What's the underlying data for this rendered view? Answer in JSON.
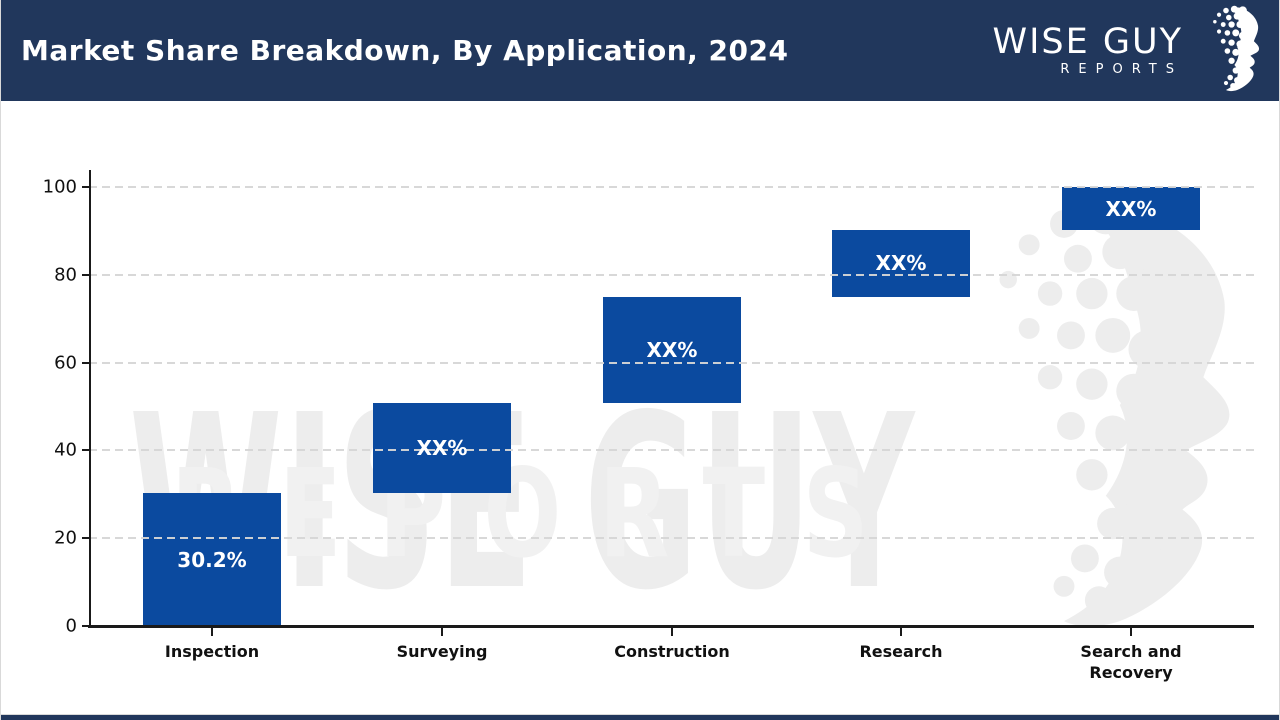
{
  "header": {
    "title": "Market Share Breakdown, By Application, 2024",
    "logo": {
      "line1": "WISE GUY",
      "line2": "REPORTS"
    }
  },
  "watermark": {
    "line1": "WISE GUY",
    "line2": "REPORTS"
  },
  "colors": {
    "header_bg": "#21375c",
    "bar": "#0b4a9f",
    "grid": "#d9d9d9",
    "axis": "#1a1a1a",
    "bar_label_text": "#ffffff"
  },
  "chart_data": {
    "type": "bar",
    "subtype": "waterfall",
    "title": "Market Share Breakdown, By Application, 2024",
    "categories": [
      "Inspection",
      "Surveying",
      "Construction",
      "Research",
      "Search and Recovery"
    ],
    "segments": [
      {
        "category": "Inspection",
        "start": 0,
        "end": 30.2,
        "label": "30.2%"
      },
      {
        "category": "Surveying",
        "start": 30.2,
        "end": 50.7,
        "label": "XX%"
      },
      {
        "category": "Construction",
        "start": 50.7,
        "end": 75.0,
        "label": "XX%"
      },
      {
        "category": "Research",
        "start": 75.0,
        "end": 90.2,
        "label": "XX%"
      },
      {
        "category": "Search and Recovery",
        "start": 90.2,
        "end": 100.0,
        "label": "XX%"
      }
    ],
    "ylim": [
      0,
      100
    ],
    "yticks": [
      0,
      20,
      40,
      60,
      80,
      100
    ],
    "xlabel": "",
    "ylabel": "",
    "grid": "horizontal-dashed",
    "legend_position": "none"
  }
}
